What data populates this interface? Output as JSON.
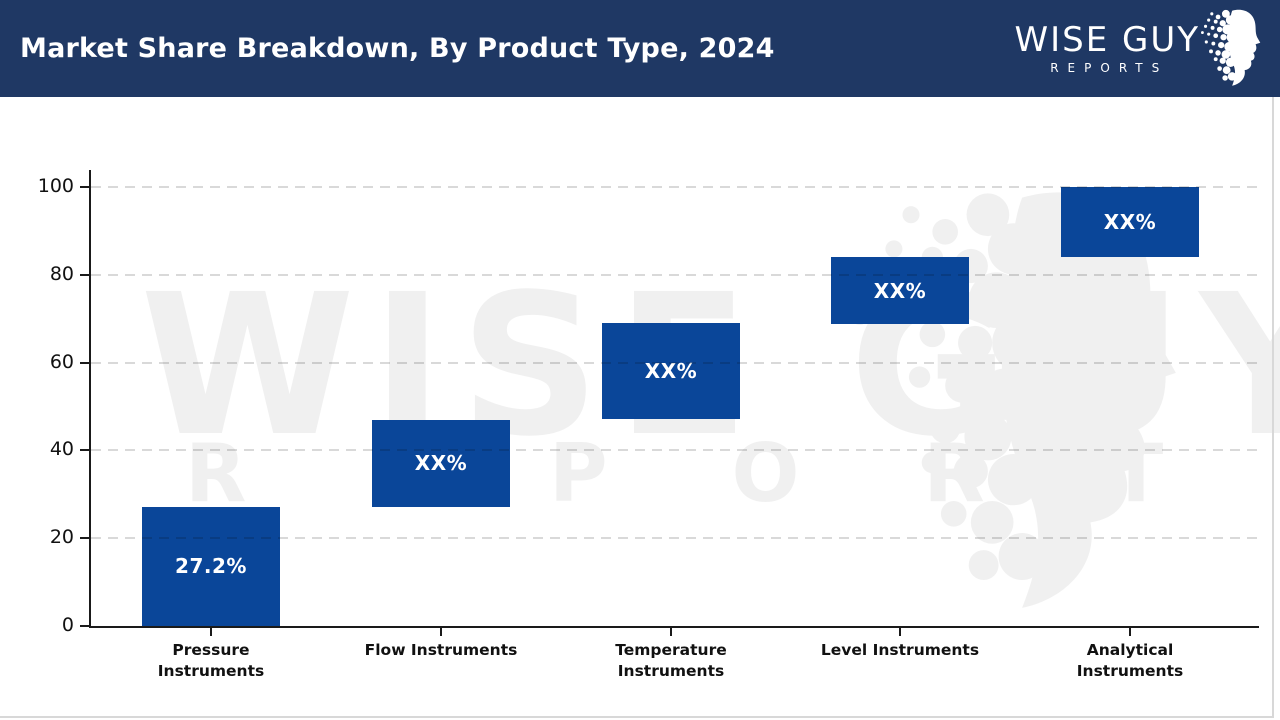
{
  "header": {
    "title": "Market Share Breakdown, By Product Type, 2024",
    "logo": {
      "line1": "WISE GUY",
      "line2": "REPORTS"
    }
  },
  "watermark": {
    "line1": "WISE GUY",
    "line2": "R E P O R T S"
  },
  "colors": {
    "header_bg": "#1F3864",
    "bar": "#0A4699",
    "grid": "#D9D9D9",
    "axis": "#1A1A1A",
    "frame": "#D8D8D8",
    "title_text": "#FFFFFF",
    "bar_label_text": "#FFFFFF",
    "tick_text": "#111111"
  },
  "chart_data": {
    "type": "bar",
    "subtype": "floating-segment (waterfall-style market share)",
    "title": "Market Share Breakdown, By Product Type, 2024",
    "xlabel": "",
    "ylabel": "",
    "ylim": [
      0,
      103.5
    ],
    "yticks": [
      0,
      20,
      40,
      60,
      80,
      100
    ],
    "grid": "horizontal dashed",
    "legend": "none",
    "categories": [
      "Pressure Instruments",
      "Flow Instruments",
      "Temperature Instruments",
      "Level Instruments",
      "Analytical Instruments"
    ],
    "bars": [
      {
        "category": "Pressure Instruments",
        "tick_lines": "Pressure\nInstruments",
        "from": 0,
        "to": 27.2,
        "label": "27.2%"
      },
      {
        "category": "Flow Instruments",
        "tick_lines": "Flow Instruments",
        "from": 27.2,
        "to": 46.9,
        "label": "XX%"
      },
      {
        "category": "Temperature Instruments",
        "tick_lines": "Temperature\nInstruments",
        "from": 47.2,
        "to": 69.0,
        "label": "XX%"
      },
      {
        "category": "Level Instruments",
        "tick_lines": "Level Instruments",
        "from": 68.7,
        "to": 84.0,
        "label": "XX%"
      },
      {
        "category": "Analytical Instruments",
        "tick_lines": "Analytical\nInstruments",
        "from": 84.0,
        "to": 100.0,
        "label": "XX%"
      }
    ]
  }
}
